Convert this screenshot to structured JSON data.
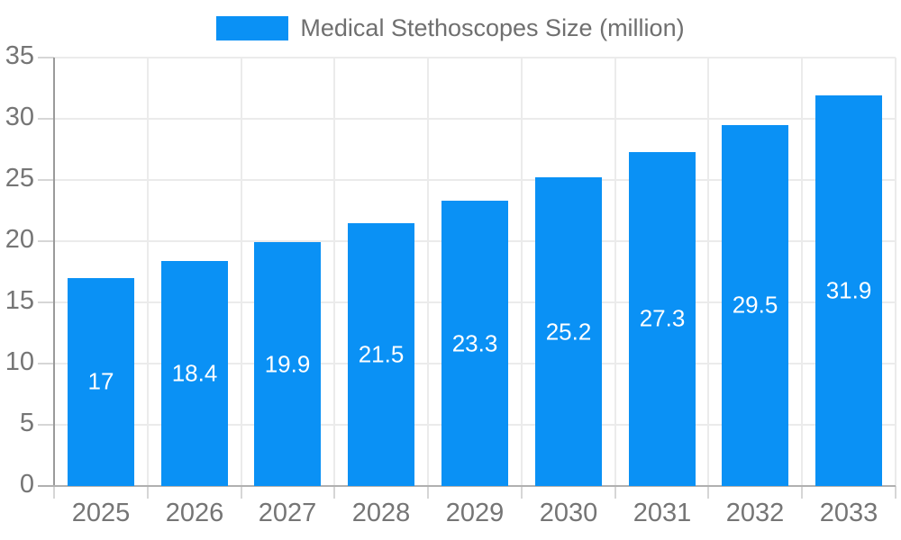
{
  "legend": {
    "label": "Medical Stethoscopes Size (million)"
  },
  "chart_data": {
    "type": "bar",
    "title": "",
    "series_name": "Medical Stethoscopes Size (million)",
    "categories": [
      "2025",
      "2026",
      "2027",
      "2028",
      "2029",
      "2030",
      "2031",
      "2032",
      "2033"
    ],
    "values": [
      17,
      18.4,
      19.9,
      21.5,
      23.3,
      25.2,
      27.3,
      29.5,
      31.9
    ],
    "xlabel": "",
    "ylabel": "",
    "ylim": [
      0,
      35
    ],
    "yticks": [
      0,
      5,
      10,
      15,
      20,
      25,
      30,
      35
    ],
    "grid": true,
    "legend_position": "top-center",
    "value_labels": "inside-center",
    "bar_color": "#0a91f5",
    "value_label_color": "#ffffff",
    "axis_text_color": "#757575"
  },
  "colors": {
    "bar": "#0a91f5",
    "grid": "#ebebeb",
    "y_axis_line": "#9a9a9a",
    "x_axis_line": "#b0b0b0",
    "tick": "#d6d6d6",
    "axis_text": "#757575",
    "legend_text": "#6f6f6f",
    "value_label": "#ffffff",
    "background": "#ffffff"
  }
}
